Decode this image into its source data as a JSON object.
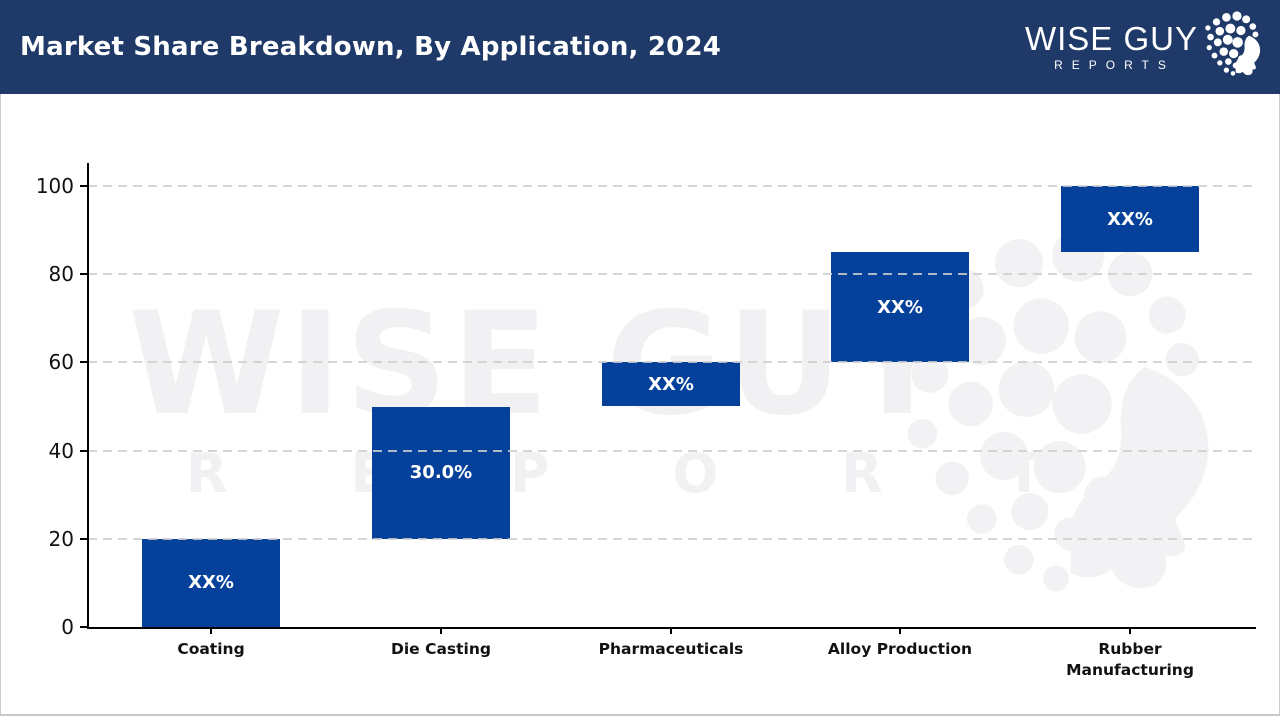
{
  "header": {
    "title": "Market Share Breakdown, By Application, 2024",
    "bg_color": "#1f3a68",
    "logo": {
      "line1": "WISE GUY",
      "line2": "REPORTS"
    }
  },
  "watermark": {
    "line1": "WISE GUY",
    "line2": "R E P O R T S"
  },
  "chart_data": {
    "type": "bar",
    "subtype": "waterfall-floating-bars",
    "title": "Market Share Breakdown, By Application, 2024",
    "categories": [
      "Coating",
      "Die Casting",
      "Pharmaceuticals",
      "Alloy Production",
      "Rubber Manufacturing"
    ],
    "segments": [
      {
        "category": "Coating",
        "start": 0,
        "end": 20,
        "label": "XX%"
      },
      {
        "category": "Die Casting",
        "start": 20,
        "end": 50,
        "label": "30.0%"
      },
      {
        "category": "Pharmaceuticals",
        "start": 50,
        "end": 60,
        "label": "XX%"
      },
      {
        "category": "Alloy Production",
        "start": 60,
        "end": 85,
        "label": "XX%"
      },
      {
        "category": "Rubber Manufacturing",
        "start": 85,
        "end": 100,
        "label": "XX%"
      }
    ],
    "y_ticks": [
      0,
      20,
      40,
      60,
      80,
      100
    ],
    "ylim": [
      0,
      100
    ],
    "xlabel": "",
    "ylabel": "",
    "bar_color": "#05419a",
    "grid": "horizontal dashed, drawn over bars",
    "grid_color": "#d0d0d0",
    "legend": "none"
  }
}
